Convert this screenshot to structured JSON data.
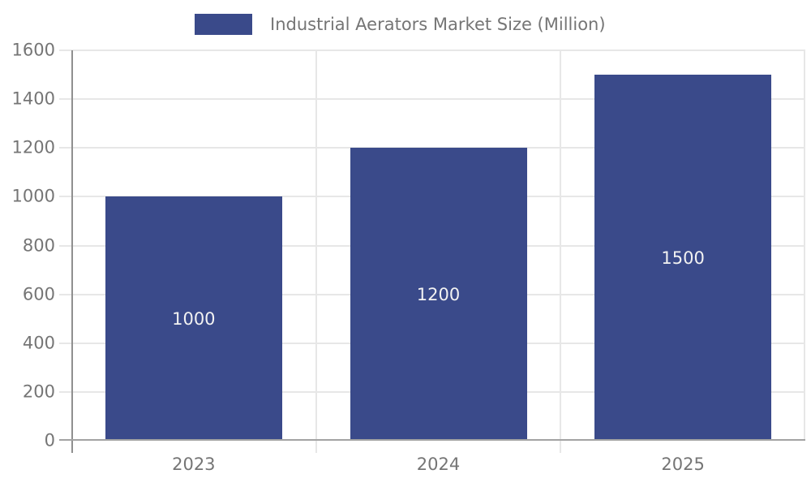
{
  "chart_data": {
    "type": "bar",
    "title": "Industrial Aerators Market Size (Million)",
    "categories": [
      "2023",
      "2024",
      "2025"
    ],
    "values": [
      1000,
      1200,
      1500
    ],
    "bar_value_labels": [
      "1000",
      "1200",
      "1500"
    ],
    "xlabel": "",
    "ylabel": "",
    "ylim": [
      0,
      1600
    ],
    "ytick_step": 200,
    "ytick_labels": [
      "0",
      "200",
      "400",
      "600",
      "800",
      "1000",
      "1200",
      "1400",
      "1600"
    ],
    "grid": true,
    "legend_position": "top-center",
    "colors": {
      "bar": "#3A4A8A",
      "bar_label_text": "#F2F2F2",
      "axis_text": "#757575",
      "gridline": "#E7E7E7",
      "x_axis_line": "#A3A3A3",
      "y_axis_line": "#8F8F8F",
      "background": "#FFFFFF"
    }
  }
}
